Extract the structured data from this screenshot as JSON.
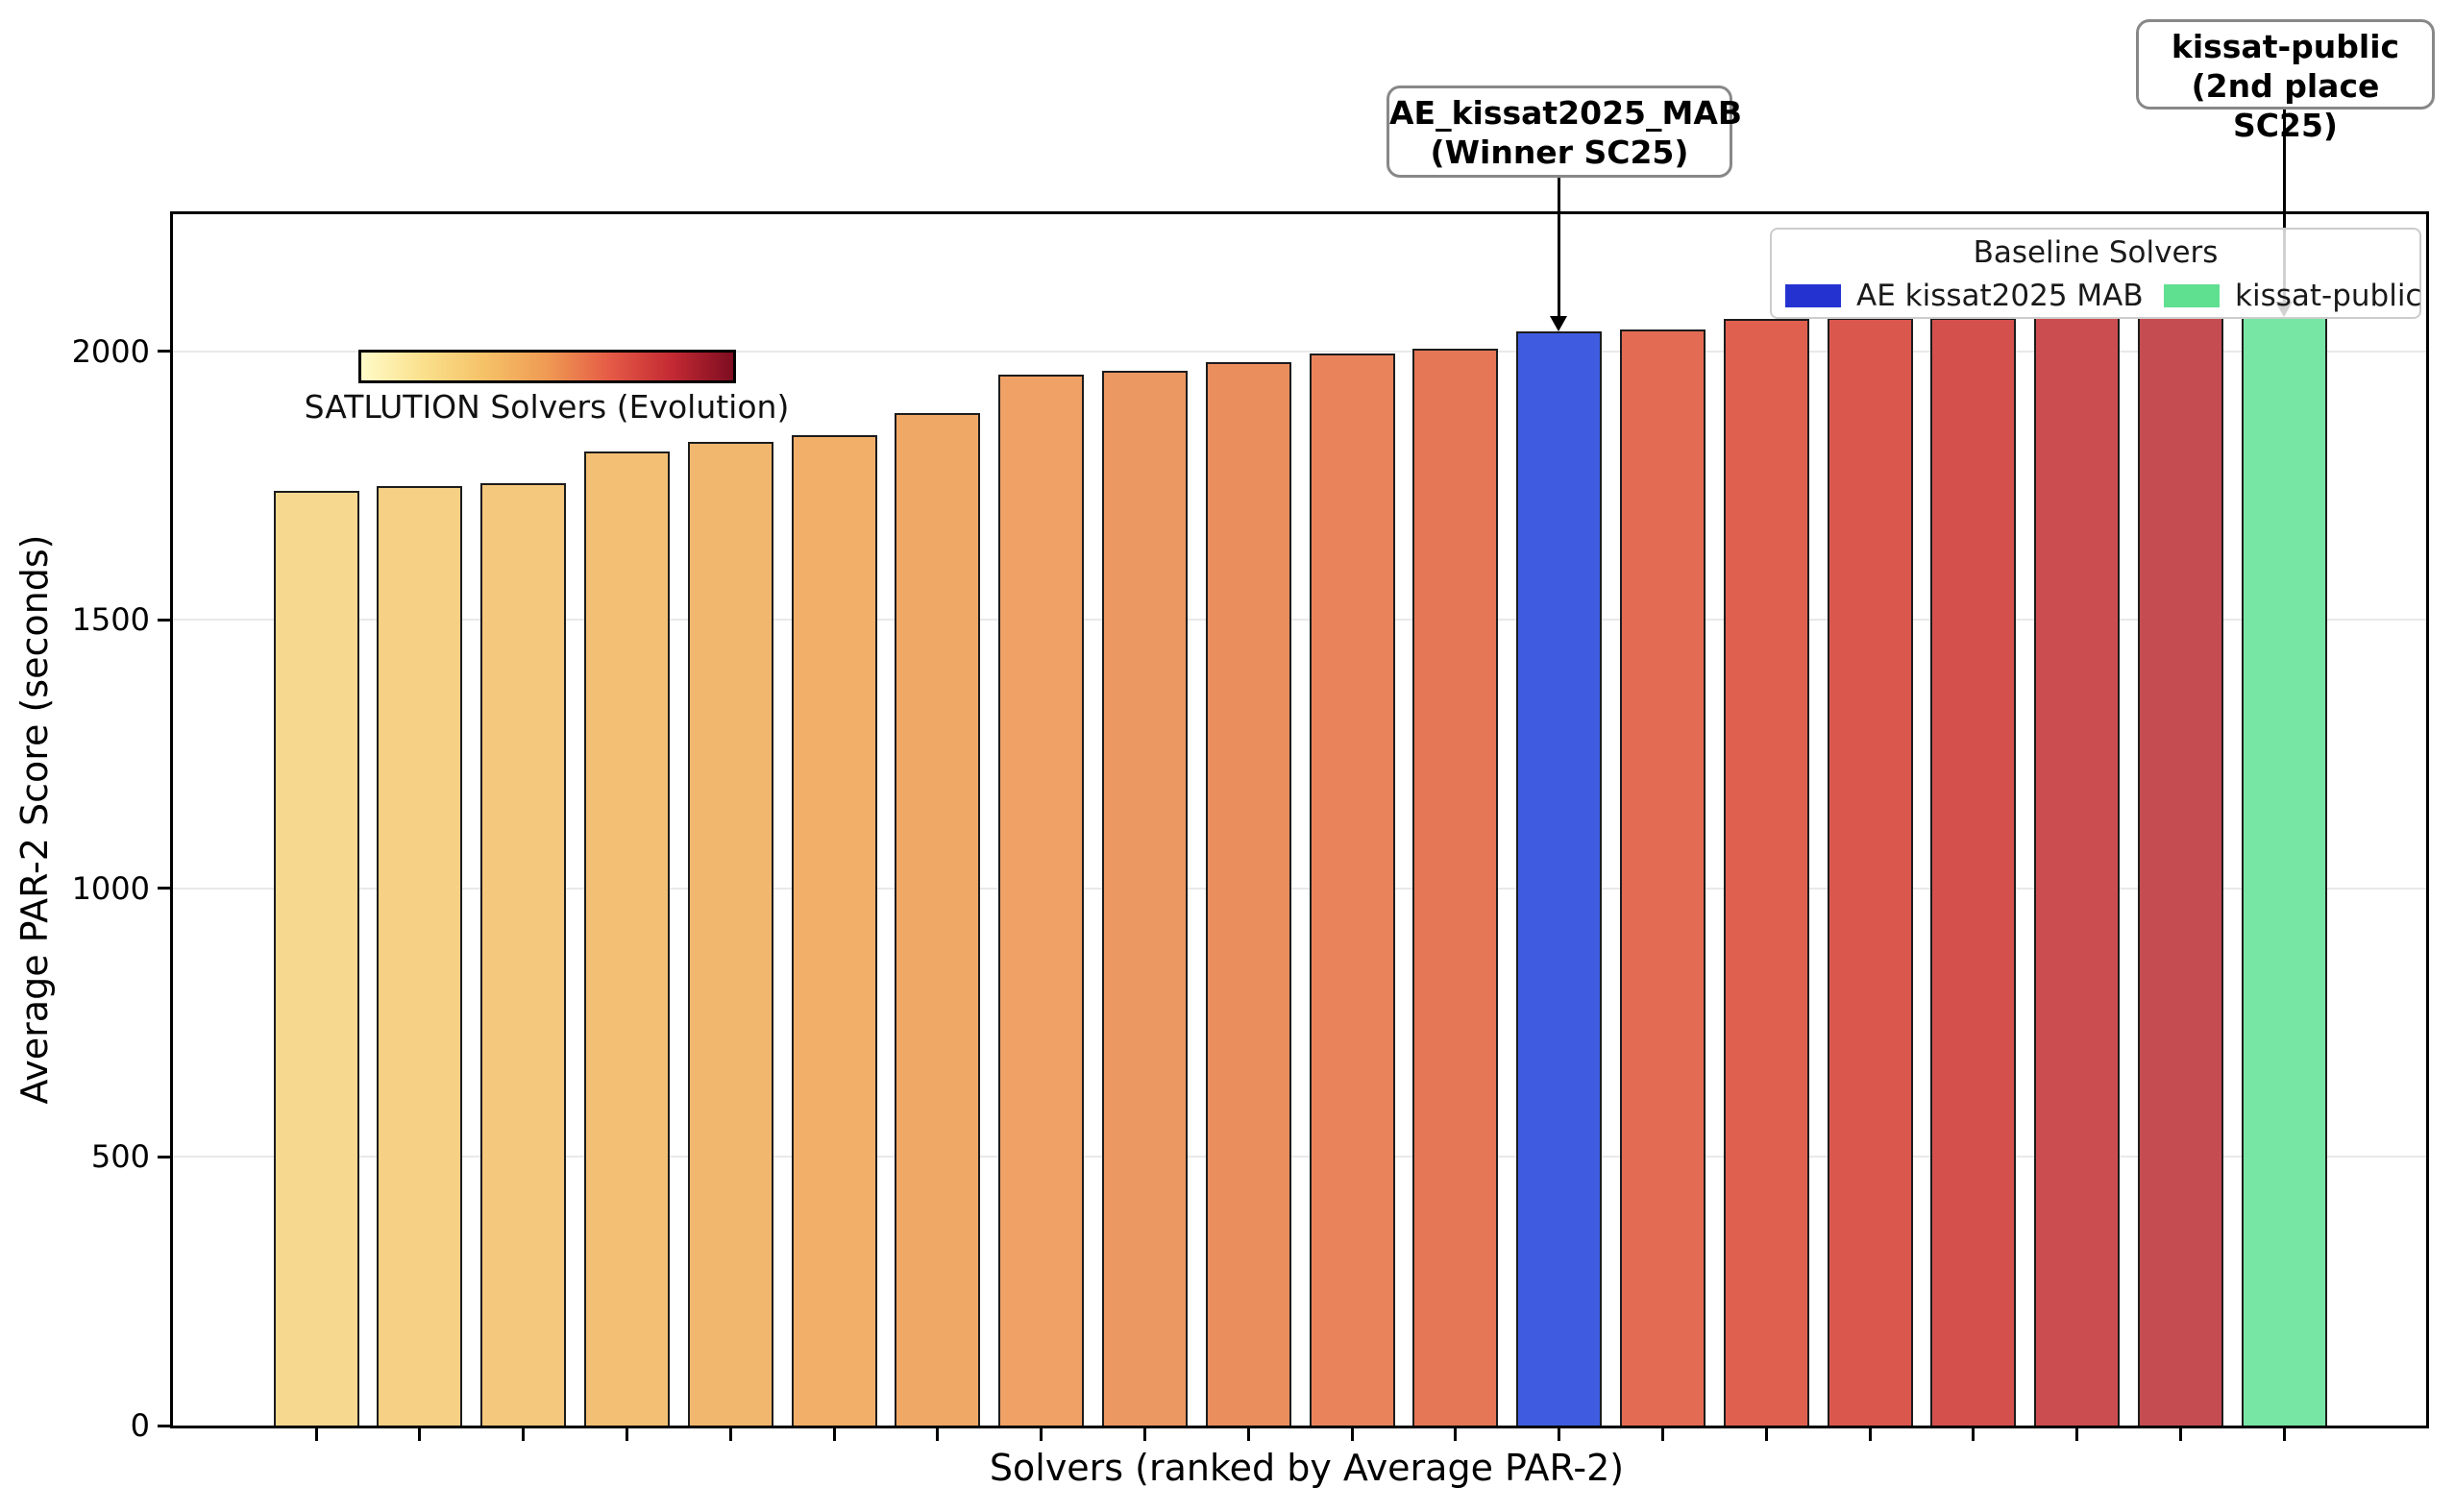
{
  "axes": {
    "y_label": "Average PAR-2 Score (seconds)",
    "x_label": "Solvers (ranked by Average PAR-2)",
    "y_ticks": [
      0,
      500,
      1000,
      1500,
      2000
    ],
    "x_tick_labels": []
  },
  "chart_data": {
    "type": "bar",
    "title": "",
    "xlabel": "Solvers (ranked by Average PAR-2)",
    "ylabel": "Average PAR-2 Score (seconds)",
    "ylim": [
      0,
      2255
    ],
    "yticks": [
      0,
      500,
      1000,
      1500,
      2000
    ],
    "grid": "horizontal light-gray lines at y ticks",
    "legend_position": "upper right",
    "bars": [
      {
        "rank": 1,
        "series": "SATLUTION",
        "value": 1740,
        "color": "#F6D88F"
      },
      {
        "rank": 2,
        "series": "SATLUTION",
        "value": 1749,
        "color": "#F5D085"
      },
      {
        "rank": 3,
        "series": "SATLUTION",
        "value": 1755,
        "color": "#F4C87D"
      },
      {
        "rank": 4,
        "series": "SATLUTION",
        "value": 1813,
        "color": "#F3BF74"
      },
      {
        "rank": 5,
        "series": "SATLUTION",
        "value": 1831,
        "color": "#F2B76E"
      },
      {
        "rank": 6,
        "series": "SATLUTION",
        "value": 1843,
        "color": "#F1AF69"
      },
      {
        "rank": 7,
        "series": "SATLUTION",
        "value": 1884,
        "color": "#F0A867"
      },
      {
        "rank": 8,
        "series": "SATLUTION",
        "value": 1957,
        "color": "#EFA166"
      },
      {
        "rank": 9,
        "series": "SATLUTION",
        "value": 1963,
        "color": "#EC9862"
      },
      {
        "rank": 10,
        "series": "SATLUTION",
        "value": 1980,
        "color": "#EA8E5E"
      },
      {
        "rank": 11,
        "series": "SATLUTION",
        "value": 1996,
        "color": "#E8835B"
      },
      {
        "rank": 12,
        "series": "SATLUTION",
        "value": 2004,
        "color": "#E57756"
      },
      {
        "rank": 13,
        "series": "AE kissat2025 MAB",
        "value": 2037,
        "color": "#3F5CE0"
      },
      {
        "rank": 14,
        "series": "SATLUTION",
        "value": 2040,
        "color": "#E36B54"
      },
      {
        "rank": 15,
        "series": "SATLUTION",
        "value": 2060,
        "color": "#E06050"
      },
      {
        "rank": 16,
        "series": "SATLUTION",
        "value": 2061,
        "color": "#DA574E"
      },
      {
        "rank": 17,
        "series": "SATLUTION",
        "value": 2062,
        "color": "#D4504C"
      },
      {
        "rank": 18,
        "series": "SATLUTION",
        "value": 2063,
        "color": "#CC4D50"
      },
      {
        "rank": 19,
        "series": "SATLUTION",
        "value": 2064,
        "color": "#C54C51"
      },
      {
        "rank": 20,
        "series": "kissat-public",
        "value": 2064,
        "color": "#77E6A4"
      }
    ]
  },
  "legend": {
    "title": "Baseline Solvers",
    "entries": [
      {
        "label": "AE kissat2025 MAB",
        "color": "#2433D0"
      },
      {
        "label": "kissat-public",
        "color": "#5FDF90"
      }
    ]
  },
  "colorbar": {
    "label": "SATLUTION Solvers (Evolution)",
    "gradient": [
      "#FFFBC8",
      "#FAE08C",
      "#F5C167",
      "#EF9A53",
      "#E55B46",
      "#C42A33",
      "#7E0D21"
    ]
  },
  "annotations": [
    {
      "line1": "AE_kissat2025_MAB",
      "line2": "(Winner SC25)",
      "points_to": "bar rank 13"
    },
    {
      "line1": "kissat-public",
      "line2": "(2nd place SC25)",
      "points_to": "bar rank 20"
    }
  ]
}
